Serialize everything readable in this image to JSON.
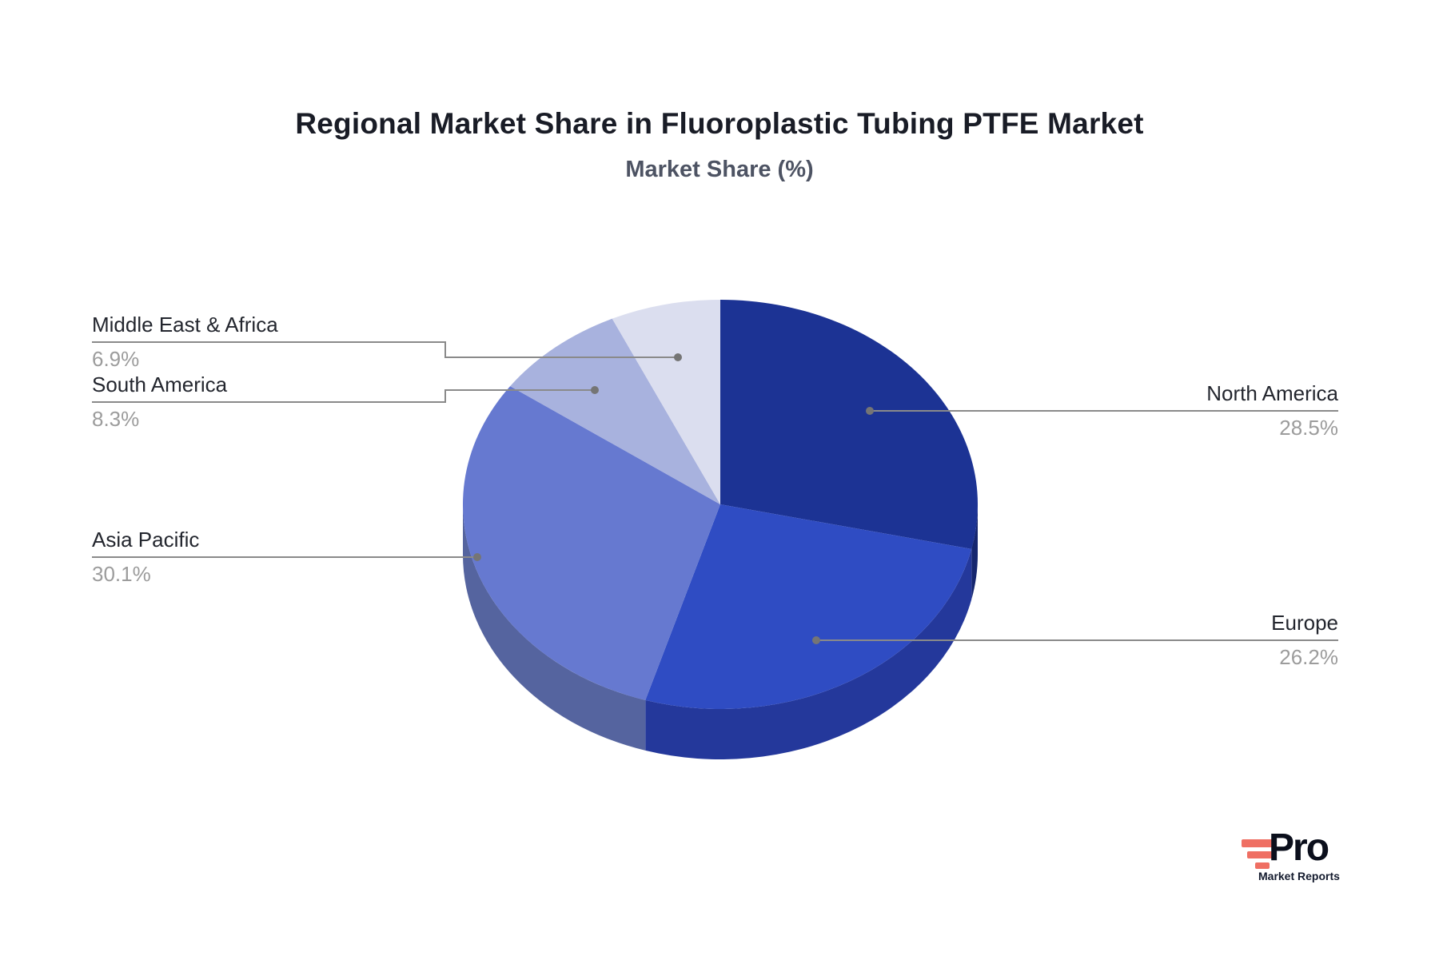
{
  "chart_data": {
    "type": "pie",
    "title": "Regional Market Share in Fluoroplastic Tubing PTFE Market",
    "subtitle": "Market Share (%)",
    "labels": [
      "North America",
      "Europe",
      "Asia Pacific",
      "South America",
      "Middle East & Africa"
    ],
    "values": [
      28.5,
      26.2,
      30.1,
      8.3,
      6.9
    ],
    "pct_labels": [
      "28.5%",
      "26.2%",
      "30.1%",
      "8.3%",
      "6.9%"
    ],
    "slice_colors": [
      "#1c3394",
      "#2f4cc3",
      "#6679d0",
      "#a8b2de",
      "#dbdeef"
    ],
    "slice_side_colors": [
      "#16276f",
      "#24389b",
      "#55649f",
      "#8791bb",
      "#b0b4c9"
    ],
    "start_angle_deg": 0,
    "direction": "clockwise",
    "style": "3d",
    "legend_position": "callout-labels",
    "title_color": "#191c26",
    "subtitle_color": "#4d5363",
    "label_color": "#23262e",
    "value_color": "#9c9c9c",
    "leader_line_color": "#8a8a8a",
    "leader_dot_color": "#757575"
  },
  "logo": {
    "brand": "Pro",
    "tagline": "Market Reports",
    "accent_color": "#ef6f63",
    "text_color": "#0b0f1c"
  }
}
